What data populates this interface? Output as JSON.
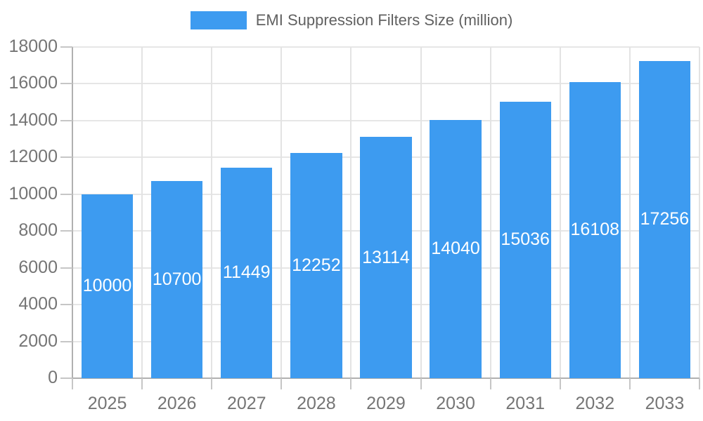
{
  "legend": {
    "label": "EMI Suppression Filters Size (million)"
  },
  "chart_data": {
    "type": "bar",
    "title": "EMI Suppression Filters Size (million)",
    "categories": [
      "2025",
      "2026",
      "2027",
      "2028",
      "2029",
      "2030",
      "2031",
      "2032",
      "2033"
    ],
    "series": [
      {
        "name": "EMI Suppression Filters Size (million)",
        "values": [
          10000,
          10700,
          11449,
          12252,
          13114,
          14040,
          15036,
          16108,
          17256
        ]
      }
    ],
    "xlabel": "",
    "ylabel": "",
    "ylim": [
      0,
      18000
    ],
    "ytick_step": 2000,
    "yticks": [
      0,
      2000,
      4000,
      6000,
      8000,
      10000,
      12000,
      14000,
      16000,
      18000
    ],
    "grid": true,
    "legend_position": "top",
    "value_labels": "inside-center"
  },
  "colors": {
    "bar": "#3d9bf0",
    "grid": "#e6e6e6",
    "axis": "#b0b0b0",
    "tick": "#c6c6c6",
    "axis_text": "#757575",
    "title_text": "#616161",
    "value_text": "#ffffff",
    "background": "#ffffff"
  }
}
